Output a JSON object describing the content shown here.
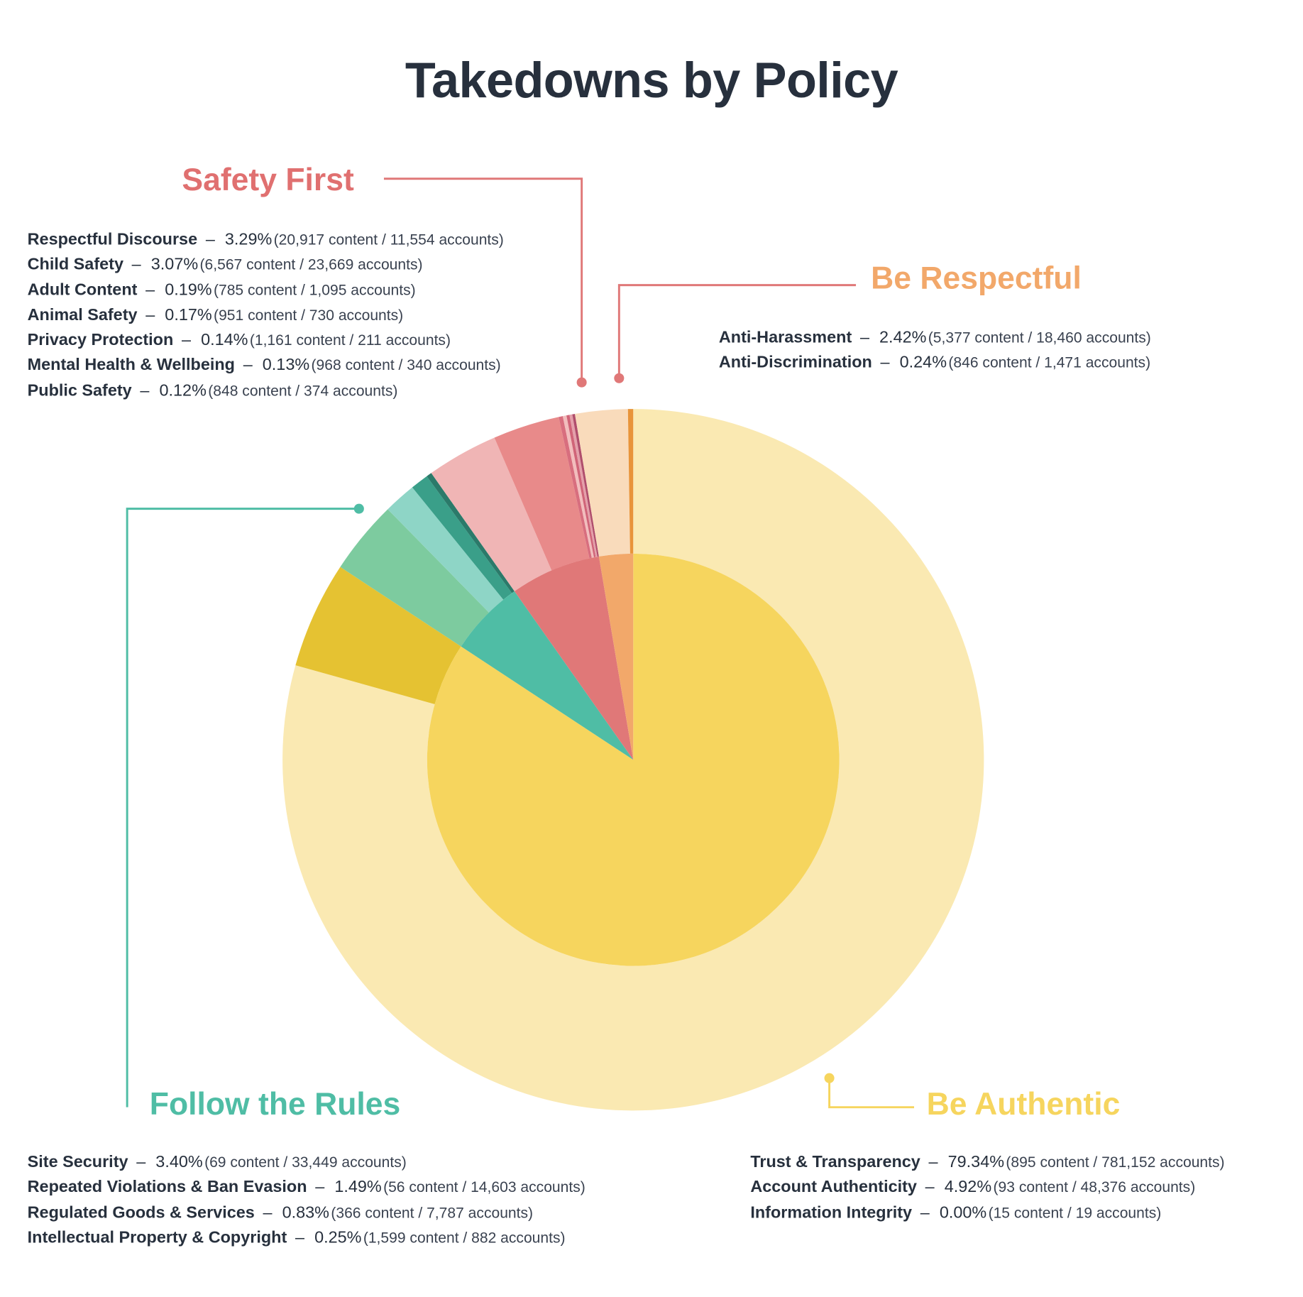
{
  "chart_data": {
    "type": "pie",
    "subtype": "nested-donut",
    "title": "Takedowns by Policy",
    "groups": [
      {
        "name": "Be Authentic",
        "color": "#F6D55E",
        "value": 84.26,
        "items": [
          {
            "name": "Trust & Transparency",
            "pct": 79.34,
            "pct_label": "79.34%",
            "detail": "(895 content / 781,152 accounts)",
            "color": "#FAE9B2"
          },
          {
            "name": "Account Authenticity",
            "pct": 4.92,
            "pct_label": "4.92%",
            "detail": "(93 content / 48,376 accounts)",
            "color": "#E5C232"
          },
          {
            "name": "Information Integrity",
            "pct": 0.0,
            "pct_label": "0.00%",
            "detail": "(15 content / 19 accounts)",
            "color": "#D4B020"
          }
        ]
      },
      {
        "name": "Follow the Rules",
        "color": "#4FBDA5",
        "value": 5.97,
        "items": [
          {
            "name": "Site Security",
            "pct": 3.4,
            "pct_label": "3.40%",
            "detail": "(69 content / 33,449 accounts)",
            "color": "#7DCB9F"
          },
          {
            "name": "Repeated Violations & Ban Evasion",
            "pct": 1.49,
            "pct_label": "1.49%",
            "detail": "(56 content / 14,603 accounts)",
            "color": "#8ED5C6"
          },
          {
            "name": "Regulated Goods & Services",
            "pct": 0.83,
            "pct_label": "0.83%",
            "detail": "(366 content / 7,787 accounts)",
            "color": "#3A9F89"
          },
          {
            "name": "Intellectual Property & Copyright",
            "pct": 0.25,
            "pct_label": "0.25%",
            "detail": "(1,599 content / 882 accounts)",
            "color": "#2B7A6A"
          }
        ]
      },
      {
        "name": "Safety First",
        "color": "#E07878",
        "value": 7.11,
        "items": [
          {
            "name": "Respectful Discourse",
            "pct": 3.29,
            "pct_label": "3.29%",
            "detail": "(20,917 content / 11,554 accounts)",
            "color": "#F0B5B5"
          },
          {
            "name": "Child Safety",
            "pct": 3.07,
            "pct_label": "3.07%",
            "detail": "(6,567 content / 23,669 accounts)",
            "color": "#E88A8A"
          },
          {
            "name": "Adult Content",
            "pct": 0.19,
            "pct_label": "0.19%",
            "detail": "(785 content / 1,095 accounts)",
            "color": "#D86E7E"
          },
          {
            "name": "Animal Safety",
            "pct": 0.17,
            "pct_label": "0.17%",
            "detail": "(951 content / 730 accounts)",
            "color": "#F2BDBD"
          },
          {
            "name": "Privacy Protection",
            "pct": 0.14,
            "pct_label": "0.14%",
            "detail": "(1,161 content / 211 accounts)",
            "color": "#D06478"
          },
          {
            "name": "Mental Health & Wellbeing",
            "pct": 0.13,
            "pct_label": "0.13%",
            "detail": "(968 content / 340 accounts)",
            "color": "#E4A0AA"
          },
          {
            "name": "Public Safety",
            "pct": 0.12,
            "pct_label": "0.12%",
            "detail": "(848 content / 374 accounts)",
            "color": "#B04E6C"
          }
        ]
      },
      {
        "name": "Be Respectful",
        "color": "#F2A86A",
        "value": 2.66,
        "items": [
          {
            "name": "Anti-Harassment",
            "pct": 2.42,
            "pct_label": "2.42%",
            "detail": "(5,377 content / 18,460 accounts)",
            "color": "#F9DBBB"
          },
          {
            "name": "Anti-Discrimination",
            "pct": 0.24,
            "pct_label": "0.24%",
            "detail": "(846 content / 1,471 accounts)",
            "color": "#E8943A"
          }
        ]
      }
    ],
    "title_colors": {
      "Be Authentic": "#F6D55E",
      "Follow the Rules": "#4FBDA5",
      "Safety First": "#E07070",
      "Be Respectful": "#F2A86A"
    },
    "separator": "–"
  }
}
